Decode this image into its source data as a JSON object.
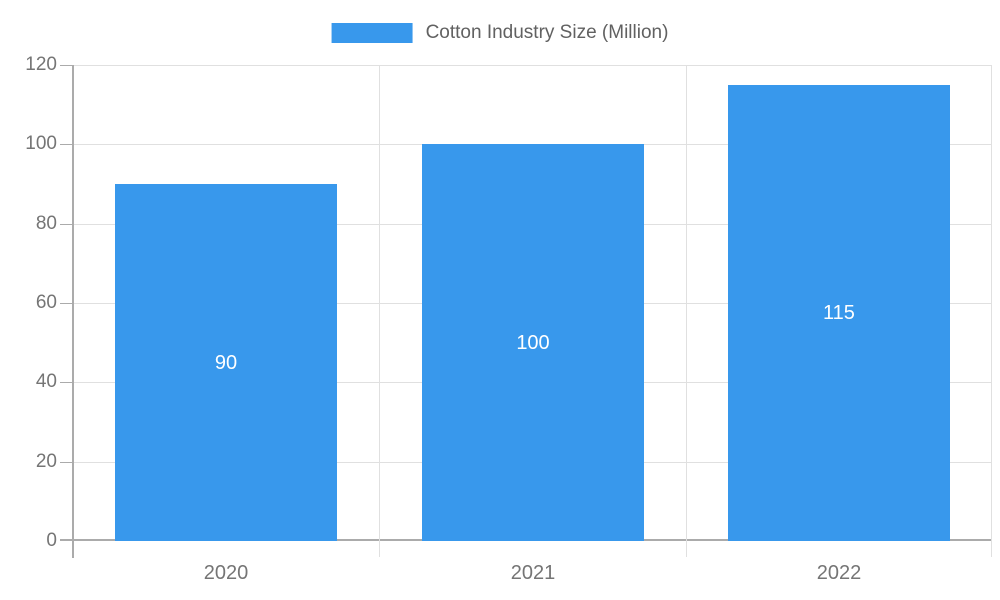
{
  "chart": {
    "colors": {
      "bar": "#3898ec",
      "grid": "#e0e0e0",
      "axis": "#ababab",
      "text": "#757575",
      "legend_text": "#616161",
      "bar_label": "#ffffff",
      "background": "#ffffff"
    }
  },
  "chart_data": {
    "type": "bar",
    "series_name": "Cotton Industry Size (Million)",
    "categories": [
      "2020",
      "2021",
      "2022"
    ],
    "values": [
      90,
      100,
      115
    ],
    "bar_value_labels": [
      "90",
      "100",
      "115"
    ],
    "yticks": [
      0,
      20,
      40,
      60,
      80,
      100,
      120
    ],
    "ylim": [
      0,
      120
    ],
    "xlabel": "",
    "ylabel": "",
    "grid": true,
    "legend_position": "top",
    "value_labels_inside_bars": true
  }
}
